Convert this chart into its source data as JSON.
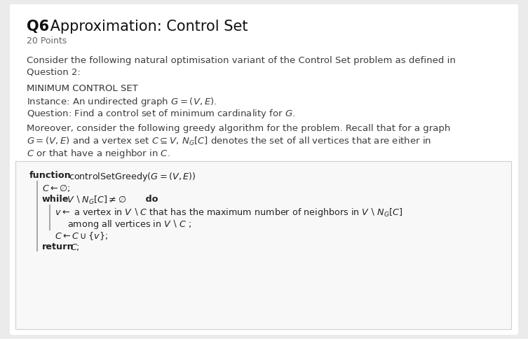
{
  "bg_color": "#ebebeb",
  "box_color": "#ffffff",
  "title_bold": "Q6",
  "title_rest": " Approximation: Control Set",
  "subtitle": "20 Points",
  "body_color": "#3d3d3d",
  "title_color": "#111111",
  "subtitle_color": "#555555",
  "code_bg": "#f5f5f5",
  "fig_width": 7.53,
  "fig_height": 4.84,
  "dpi": 100
}
